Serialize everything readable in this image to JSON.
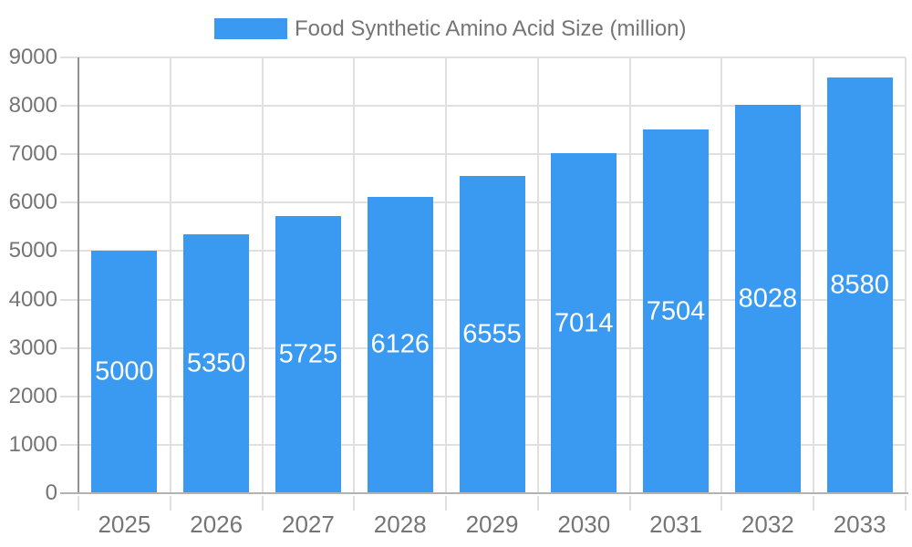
{
  "legend": {
    "position": "top",
    "swatch_color": "#3a99f0"
  },
  "chart_data": {
    "type": "bar",
    "title": "Food Synthetic Amino Acid Size (million)",
    "categories": [
      "2025",
      "2026",
      "2027",
      "2028",
      "2029",
      "2030",
      "2031",
      "2032",
      "2033"
    ],
    "values": [
      5000,
      5350,
      5725,
      6126,
      6555,
      7014,
      7504,
      8028,
      8580
    ],
    "value_labels": [
      "5000",
      "5350",
      "5725",
      "6126",
      "6555",
      "7014",
      "7504",
      "8028",
      "8580"
    ],
    "xlabel": "",
    "ylabel": "",
    "ylim": [
      0,
      9000
    ],
    "ytick_interval": 1000,
    "yticks": [
      0,
      1000,
      2000,
      3000,
      4000,
      5000,
      6000,
      7000,
      8000,
      9000
    ],
    "ytick_labels": [
      "0",
      "1000",
      "2000",
      "3000",
      "4000",
      "5000",
      "6000",
      "7000",
      "8000",
      "9000"
    ],
    "grid": true,
    "legend_position": "top",
    "bar_color": "#3a99f0",
    "value_label_position": "center-inside"
  },
  "colors": {
    "bar": "#3a99f0",
    "axis_text": "#757575",
    "grid_line": "#e0e0e0",
    "x_axis_line": "#b3b3b3",
    "y_axis_line": "#919191",
    "value_label": "#ffffff",
    "background": "#ffffff"
  }
}
